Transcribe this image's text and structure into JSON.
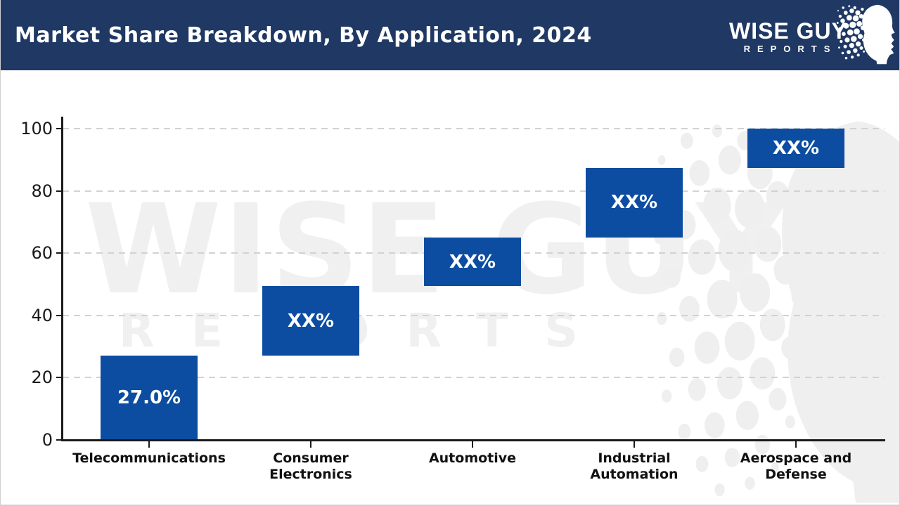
{
  "header": {
    "title": "Market Share Breakdown, By Application, 2024",
    "brand": {
      "name_top": "WISE GUY",
      "name_bottom": "REPORTS"
    }
  },
  "watermark": {
    "text_top": "WISE GUY",
    "text_bottom": "REPORTS"
  },
  "colors": {
    "header_background": "#1F3864",
    "bar_fill": "#0C4DA2",
    "bar_label": "#FFFFFF",
    "axis": "#1A1A1A",
    "gridline": "#D2D2D2",
    "watermark": "#F0F0F0",
    "page_border": "#CFCFCF"
  },
  "chart_data": {
    "type": "bar",
    "subtype": "floating-waterfall",
    "title": "Market Share Breakdown, By Application, 2024",
    "categories": [
      "Telecommunications",
      "Consumer Electronics",
      "Automotive",
      "Industrial Automation",
      "Aerospace and Defense"
    ],
    "segments": [
      {
        "category": "Telecommunications",
        "category_lines": [
          "Telecommunications"
        ],
        "start": 0,
        "end": 27,
        "label": "27.0%"
      },
      {
        "category": "Consumer Electronics",
        "category_lines": [
          "Consumer",
          "Electronics"
        ],
        "start": 27,
        "end": 49.5,
        "label": "XX%"
      },
      {
        "category": "Automotive",
        "category_lines": [
          "Automotive"
        ],
        "start": 49.5,
        "end": 65,
        "label": "XX%"
      },
      {
        "category": "Industrial Automation",
        "category_lines": [
          "Industrial",
          "Automation"
        ],
        "start": 65,
        "end": 87.5,
        "label": "XX%"
      },
      {
        "category": "Aerospace and Defense",
        "category_lines": [
          "Aerospace and",
          "Defense"
        ],
        "start": 87.5,
        "end": 100,
        "label": "XX%"
      }
    ],
    "y_ticks": [
      0,
      20,
      40,
      60,
      80,
      100
    ],
    "ylim": [
      0,
      104
    ],
    "xlabel": "",
    "ylabel": "",
    "grid": "horizontal dashed",
    "legend": "none",
    "bar_color": "#0C4DA2",
    "bar_label_color": "#FFFFFF"
  }
}
